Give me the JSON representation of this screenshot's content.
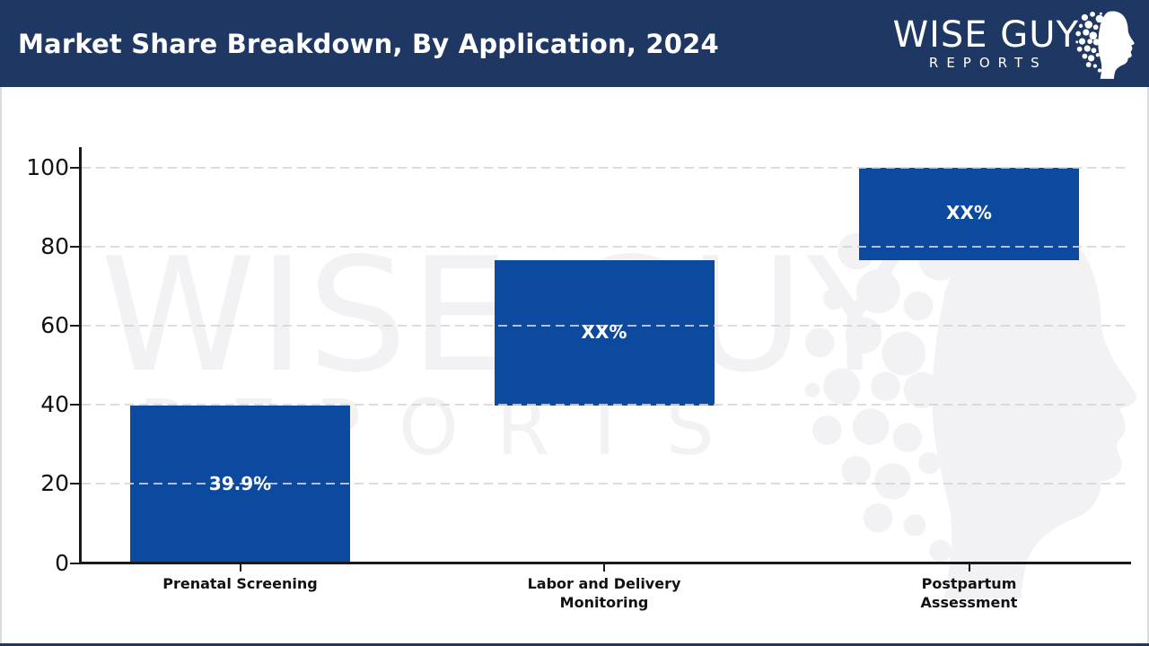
{
  "header": {
    "title": "Market Share Breakdown, By Application, 2024",
    "logo": {
      "name": "WISE GUY",
      "subname": "REPORTS"
    }
  },
  "watermark": {
    "name": "WISE GUY",
    "subname": "REPORTS"
  },
  "chart_data": {
    "type": "bar",
    "subtype": "stepped-waterfall",
    "title": "Market Share Breakdown, By Application, 2024",
    "categories": [
      "Prenatal Screening",
      "Labor and Delivery Monitoring",
      "Postpartum Assessment"
    ],
    "category_lines": [
      [
        "Prenatal Screening"
      ],
      [
        "Labor and Delivery",
        "Monitoring"
      ],
      [
        "Postpartum",
        "Assessment"
      ]
    ],
    "segments": [
      {
        "category": "Prenatal Screening",
        "label": "39.9%",
        "start": 0,
        "end": 39.9
      },
      {
        "category": "Labor and Delivery Monitoring",
        "label": "XX%",
        "start": 39.9,
        "end": 76.6
      },
      {
        "category": "Postpartum Assessment",
        "label": "XX%",
        "start": 76.6,
        "end": 100
      }
    ],
    "yticks": [
      0,
      20,
      40,
      60,
      80,
      100
    ],
    "ylim": [
      0,
      105
    ],
    "xlabel": "",
    "ylabel": "",
    "grid": "horizontal-dashed",
    "legend": "none",
    "bar_color": "#0b4a9f",
    "bar_label_color": "#ffffff",
    "grid_color": "#d8d8d8",
    "axis_color": "#1a1a1a"
  },
  "colors": {
    "header_bg": "#1f3863",
    "accent_blue": "#0b4a9f",
    "watermark_gray": "#f2f2f4"
  }
}
